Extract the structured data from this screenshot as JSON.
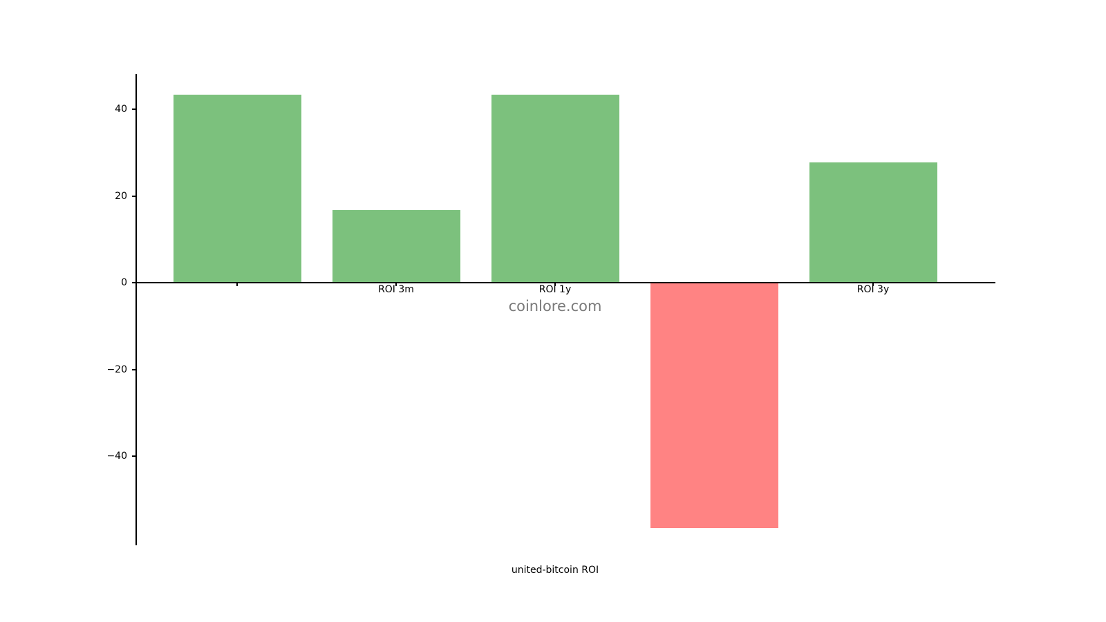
{
  "watermark_text": "coinlore.com",
  "footer_label": "united-bitcoin ROI",
  "colors": {
    "positive_bar": "#7CC17D",
    "negative_bar": "#FF8383",
    "axis": "#000000",
    "watermark": "#7a7a7a"
  },
  "chart_data": {
    "type": "bar",
    "title": "united-bitcoin ROI",
    "categories": [
      "",
      "ROI 3m",
      "ROI 1y",
      "",
      "ROI 3y"
    ],
    "values": [
      43.3,
      16.7,
      43.3,
      -56.6,
      27.7
    ],
    "bar_colors": [
      "#7CC17D",
      "#7CC17D",
      "#7CC17D",
      "#FF8383",
      "#7CC17D"
    ],
    "bar_names": [
      "roi-bar-1",
      "roi-bar-3m",
      "roi-bar-1y",
      "roi-bar-negative",
      "roi-bar-3y"
    ],
    "xlabel": "united-bitcoin ROI",
    "ylabel": "",
    "ylim": [
      -60.6,
      48.1
    ],
    "yticks": [
      40,
      20,
      0,
      -20,
      -40
    ],
    "ytick_labels": [
      "40",
      "20",
      "0",
      "−20",
      "−40"
    ],
    "grid": false,
    "legend": null,
    "annotations": [
      "coinlore.com"
    ]
  }
}
